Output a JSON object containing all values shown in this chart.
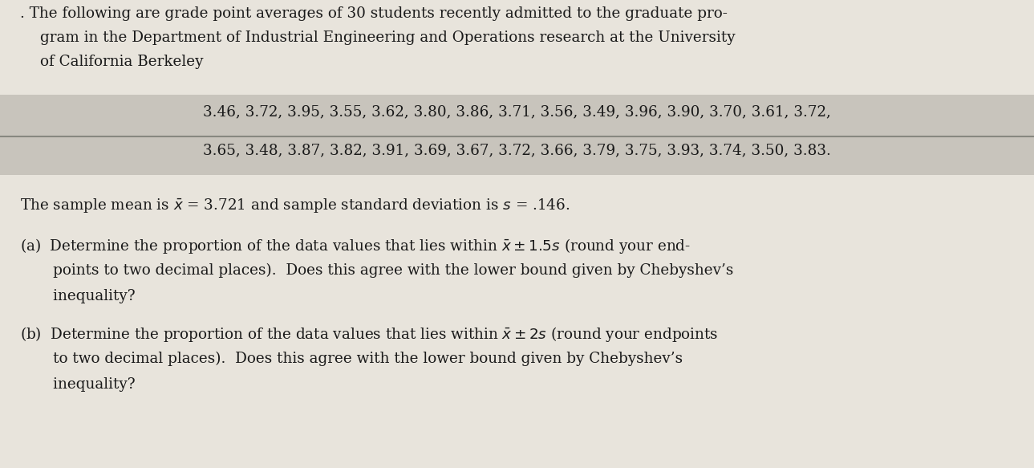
{
  "background_color": "#e8e4dc",
  "data_band_color": "#c8c4bc",
  "data_band_line_color": "#888880",
  "text_color": "#1a1a1a",
  "title_line1": ". The following are grade point averages of 30 students recently admitted to the graduate pro-",
  "title_line2": "gram in the Department of Industrial Engineering and Operations research at the University",
  "title_line3": "of California Berkeley",
  "data_line1": "3.46, 3.72, 3.95, 3.55, 3.62, 3.80, 3.86, 3.71, 3.56, 3.49, 3.96, 3.90, 3.70, 3.61, 3.72,",
  "data_line2": "3.65, 3.48, 3.87, 3.82, 3.91, 3.69, 3.67, 3.72, 3.66, 3.79, 3.75, 3.93, 3.74, 3.50, 3.83.",
  "stats_line": "The sample mean is $\\bar{x}$ = 3.721 and sample standard deviation is $s$ = .146.",
  "part_a_line1": "(a)  Determine the proportion of the data values that lies within $\\bar{x}\\pm 1.5s$ (round your end-",
  "part_a_line2": "       points to two decimal places).  Does this agree with the lower bound given by Chebyshev’s",
  "part_a_line3": "       inequality?",
  "part_b_line1": "(b)  Determine the proportion of the data values that lies within $\\bar{x}\\pm2s$ (round your endpoints",
  "part_b_line2": "       to two decimal places).  Does this agree with the lower bound given by Chebyshev’s",
  "part_b_line3": "       inequality?"
}
